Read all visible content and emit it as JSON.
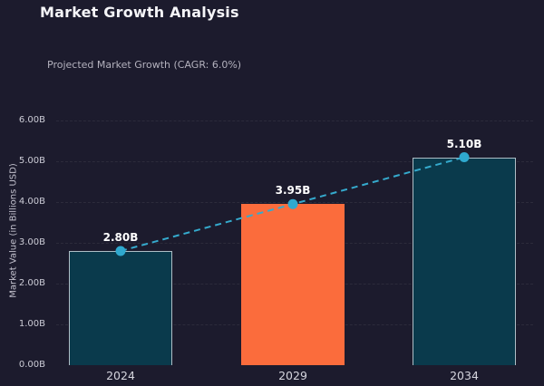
{
  "header": {
    "title": "Market Growth Analysis",
    "subtitle": "Projected Market Growth (CAGR: 6.0%)"
  },
  "colors": {
    "background": "#1c1b2d",
    "bar_teal": "#0a3a4c",
    "bar_teal_border": "#d7e0e5",
    "bar_orange": "#fb6c3c",
    "trend_line": "#35aacd",
    "trend_marker": "#2fa9cf",
    "title_text": "#f5f5f8",
    "subtitle_text": "#b3b1bd",
    "tick_text": "#ccccd6",
    "value_label_text": "#ffffff"
  },
  "chart_data": {
    "type": "bar",
    "title": "Market Growth Analysis",
    "subtitle": "Projected Market Growth (CAGR: 6.0%)",
    "categories": [
      "2024",
      "2029",
      "2034"
    ],
    "values": [
      2.8,
      3.95,
      5.1
    ],
    "bar_labels": [
      "2.80B",
      "3.95B",
      "5.10B"
    ],
    "bar_colors": [
      "teal",
      "orange",
      "teal"
    ],
    "xlabel": "",
    "ylabel": "Market Value (in Billions USD)",
    "ylim": [
      0,
      6
    ],
    "yticks": [
      "0.00B",
      "1.00B",
      "2.00B",
      "3.00B",
      "4.00B",
      "5.00B",
      "6.00B"
    ],
    "grid": "faint dashed horizontal lines",
    "legend": "none",
    "overlay": {
      "type": "line",
      "style": "dashed with circular markers",
      "x": [
        "2024",
        "2029",
        "2034"
      ],
      "y": [
        2.8,
        3.95,
        5.1
      ]
    }
  }
}
